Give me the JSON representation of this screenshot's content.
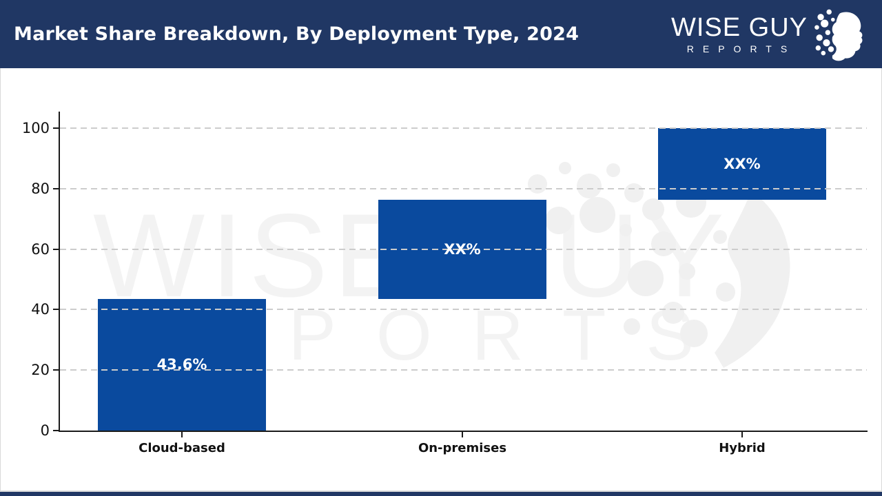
{
  "header": {
    "title": "Market Share Breakdown, By Deployment Type, 2024",
    "logo": {
      "line1": "WISE GUY",
      "line2": "REPORTS"
    }
  },
  "watermark": {
    "line1": "WISE GUY",
    "line2": "REPORTS"
  },
  "chart_data": {
    "type": "bar",
    "subtype": "floating-waterfall",
    "title": "Market Share Breakdown, By Deployment Type, 2024",
    "categories": [
      "Cloud-based",
      "On-premises",
      "Hybrid"
    ],
    "segments": [
      {
        "category": "Cloud-based",
        "label": "43.6%",
        "start": 0,
        "end": 43.6
      },
      {
        "category": "On-premises",
        "label": "XX%",
        "start": 43.6,
        "end": 76.4
      },
      {
        "category": "Hybrid",
        "label": "XX%",
        "start": 76.4,
        "end": 100
      }
    ],
    "y_ticks": [
      0,
      20,
      40,
      60,
      80,
      100
    ],
    "ylim": [
      0,
      105
    ],
    "xlabel": "",
    "ylabel": "",
    "grid": "horizontal-dashed",
    "legend": "none",
    "colors": {
      "bar": "#0a4a9e",
      "header": "#203764",
      "gridline": "#cccccc",
      "watermark": "#f3f3f3"
    }
  }
}
